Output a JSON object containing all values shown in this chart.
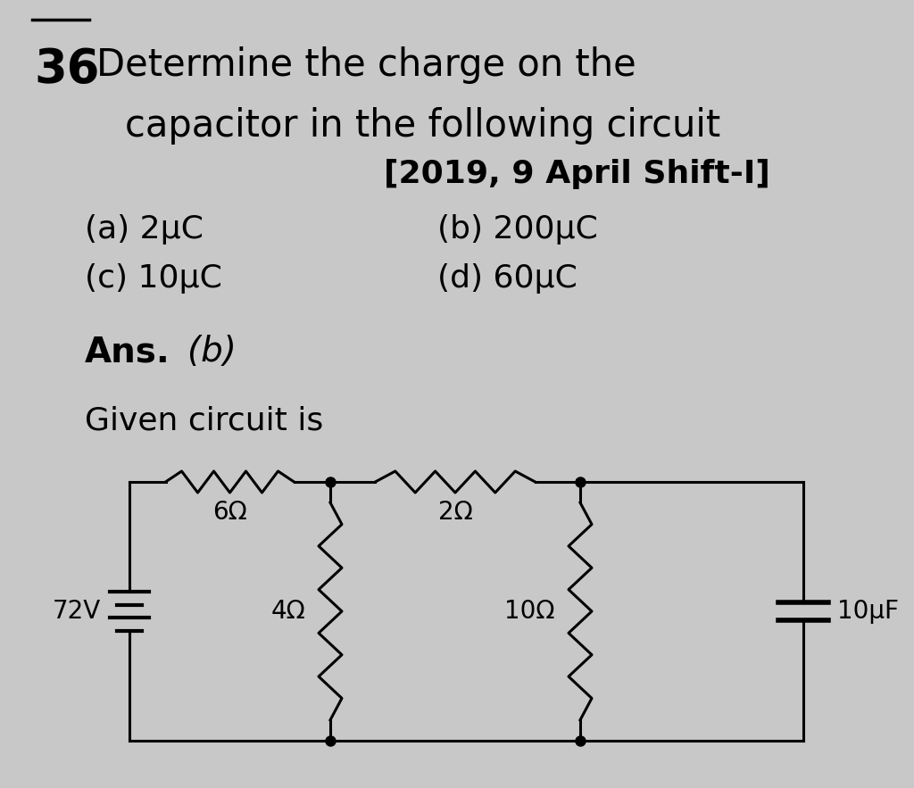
{
  "bg_color": "#c8c8c8",
  "title_number": "36",
  "line1": "Determine the charge on the",
  "line2": "capacitor in the following circuit",
  "subtitle": "[2019, 9 April Shift-I]",
  "opt_a": "(a) 2μC",
  "opt_b": "(b) 200μC",
  "opt_c": "(c) 10μC",
  "opt_d": "(d) 60μC",
  "ans_bold": "Ans.",
  "ans_italic": "(b)",
  "given_text": "Given circuit is",
  "r6": "6Ω",
  "r4": "4Ω",
  "r2": "2Ω",
  "r10": "10Ω",
  "cap": "10μF",
  "volt": "72V",
  "lw": 2.2
}
